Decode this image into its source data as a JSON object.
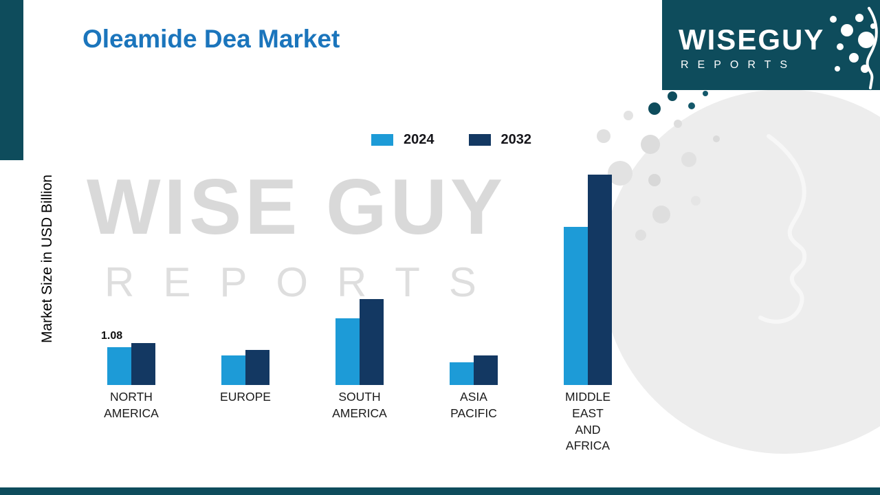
{
  "page": {
    "title": "Oleamide Dea Market"
  },
  "logo": {
    "brand_line1": "WISEGUY",
    "brand_line2": "REPORTS"
  },
  "watermark": {
    "line1": "WISE GUY",
    "line2": "REPORTS"
  },
  "axis": {
    "y_label": "Market Size in USD Billion"
  },
  "chart_data": {
    "type": "bar",
    "title": "Oleamide Dea Market",
    "ylabel": "Market Size in USD Billion",
    "xlabel": "",
    "categories": [
      "NORTH AMERICA",
      "EUROPE",
      "SOUTH AMERICA",
      "ASIA PACIFIC",
      "MIDDLE EAST AND AFRICA"
    ],
    "category_label_lines": [
      [
        "NORTH",
        "AMERICA"
      ],
      [
        "EUROPE"
      ],
      [
        "SOUTH",
        "AMERICA"
      ],
      [
        "ASIA",
        "PACIFIC"
      ],
      [
        "MIDDLE",
        "EAST",
        "AND",
        "AFRICA"
      ]
    ],
    "series": [
      {
        "name": "2024",
        "color": "#1d9bd7",
        "values": [
          1.08,
          0.85,
          1.9,
          0.65,
          4.5
        ]
      },
      {
        "name": "2032",
        "color": "#133862",
        "values": [
          1.2,
          1.0,
          2.45,
          0.85,
          6.0
        ]
      }
    ],
    "annotations": [
      {
        "series_index": 0,
        "category_index": 0,
        "text": "1.08"
      }
    ],
    "ylim": [
      0,
      6.5
    ],
    "grid": false,
    "legend_position": "top-center"
  },
  "colors": {
    "title": "#1b75bc",
    "accent_teal": "#0e4c5c",
    "series_2024": "#1d9bd7",
    "series_2032": "#133862",
    "watermark": "#d9d9d9",
    "background_circle": "#ededed"
  }
}
